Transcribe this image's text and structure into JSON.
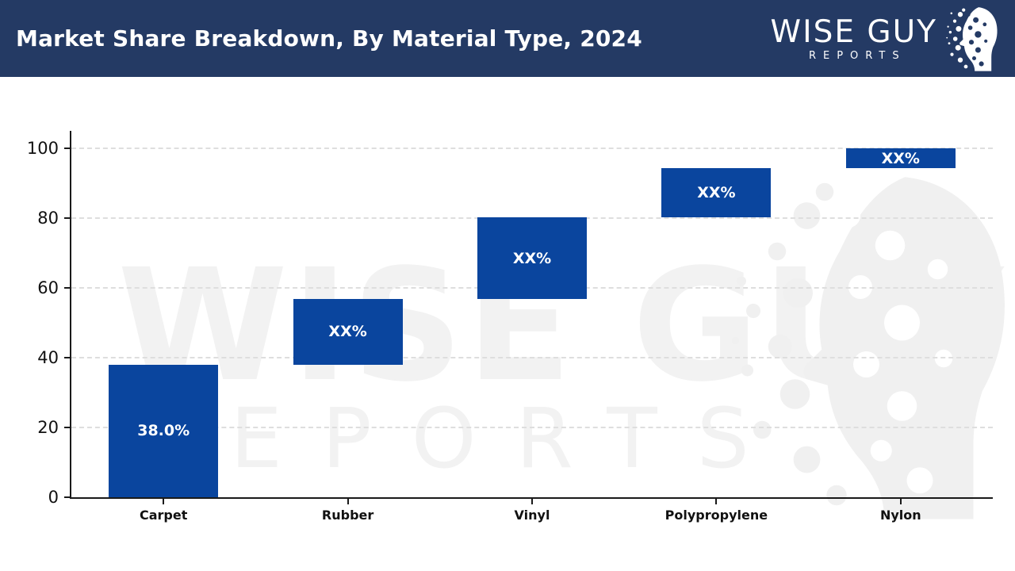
{
  "header": {
    "title": "Market Share Breakdown, By Material Type, 2024"
  },
  "brand": {
    "name": "WISE GUY",
    "subname": "REPORTS"
  },
  "watermark": {
    "line1": "WISE GUY",
    "line2": "REPORTS"
  },
  "chart_data": {
    "type": "bar",
    "subtype": "waterfall",
    "title": "Market Share Breakdown, By Material Type, 2024",
    "categories": [
      "Carpet",
      "Rubber",
      "Vinyl",
      "Polypropylene",
      "Nylon"
    ],
    "segments": [
      {
        "category": "Carpet",
        "start": 0,
        "end": 38.0,
        "value": 38.0,
        "label": "38.0%"
      },
      {
        "category": "Rubber",
        "start": 38.0,
        "end": 56.8,
        "value": 18.8,
        "label": "XX%"
      },
      {
        "category": "Vinyl",
        "start": 56.8,
        "end": 80.2,
        "value": 23.4,
        "label": "XX%"
      },
      {
        "category": "Polypropylene",
        "start": 80.2,
        "end": 94.3,
        "value": 14.1,
        "label": "XX%"
      },
      {
        "category": "Nylon",
        "start": 94.3,
        "end": 100.0,
        "value": 5.7,
        "label": "XX%"
      }
    ],
    "yticks": [
      0,
      20,
      40,
      60,
      80,
      100
    ],
    "ylim": [
      0,
      105
    ],
    "xlabel": "",
    "ylabel": "",
    "grid": "horizontal-dashed",
    "legend": "none",
    "bar_color": "#0a459e",
    "bar_label_color": "#ffffff",
    "axis_color": "#1a1a1a",
    "grid_color": "#dedede"
  }
}
